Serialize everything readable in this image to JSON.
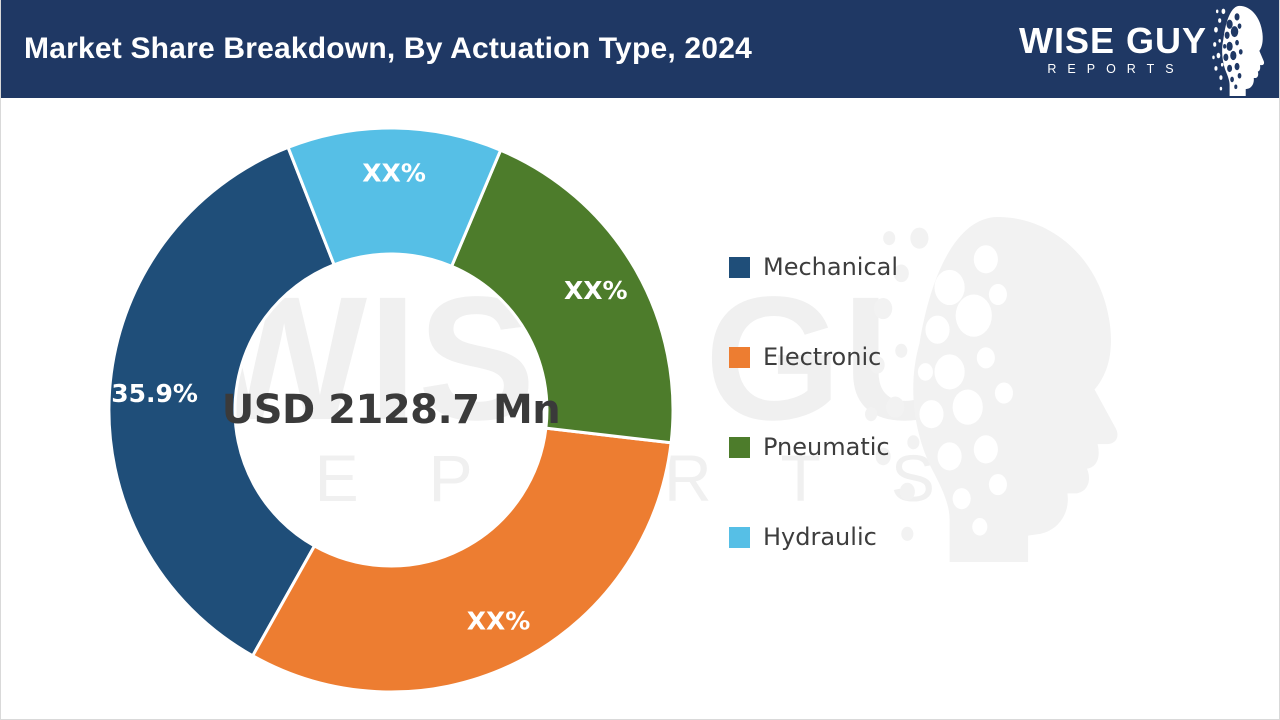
{
  "header": {
    "title": "Market Share Breakdown, By Actuation Type, 2024",
    "logo": {
      "line1": "WISE GUY",
      "line2": "REPORTS"
    }
  },
  "watermark": {
    "line1": "WISE GUY",
    "line2": "REPORTS"
  },
  "chart_data": {
    "type": "pie",
    "subtype": "donut",
    "title": "Market Share Breakdown, By Actuation Type, 2024",
    "center_label": "USD 2128.7 Mn",
    "categories": [
      "Mechanical",
      "Electronic",
      "Pneumatic",
      "Hydraulic"
    ],
    "values_pct": [
      35.9,
      31.3,
      20.5,
      12.3
    ],
    "labels_shown": [
      "35.9%",
      "XX%",
      "XX%",
      "XX%"
    ],
    "colors": [
      "#1f4e79",
      "#ed7d31",
      "#4d7c2b",
      "#56bfe6"
    ],
    "legend_position": "right",
    "start_angle_deg": 111.4,
    "counterclockwise": true,
    "inner_radius_ratio": 0.553,
    "note_only_mechanical_value_shown": "35.9%"
  },
  "legend": {
    "items": [
      {
        "label": "Mechanical",
        "color": "#1f4e79"
      },
      {
        "label": "Electronic",
        "color": "#ed7d31"
      },
      {
        "label": "Pneumatic",
        "color": "#4d7c2b"
      },
      {
        "label": "Hydraulic",
        "color": "#56bfe6"
      }
    ]
  },
  "colors": {
    "header_bg": "#1f3864",
    "title_text": "#ffffff",
    "center_text": "#3a3a3a",
    "legend_text": "#3d3d3d",
    "watermark": "#f0f0f0",
    "watermark_head": "#f2f2f2",
    "page_border": "#d9d9d9",
    "background": "#ffffff",
    "segment_gap": "#ffffff"
  }
}
